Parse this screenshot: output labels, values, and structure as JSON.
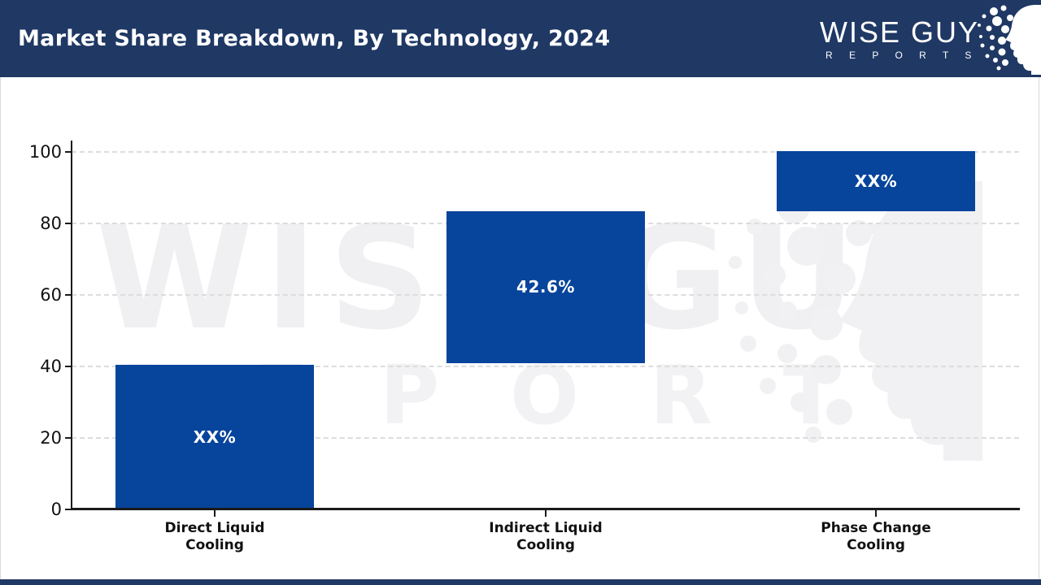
{
  "header": {
    "title": "Market Share Breakdown, By Technology, 2024",
    "logo": {
      "line1": "WISE GUY",
      "line2": "R E P O R T S"
    }
  },
  "watermark": {
    "line1": "WISE GUY",
    "line2": "R E P O R T S"
  },
  "colors": {
    "header_bg": "#1f3864",
    "bar": "#07449c",
    "grid": "#dcdcdc",
    "axis": "#1a1a1a",
    "watermark": "#f0f0f2",
    "card_border": "#d9d9d9",
    "bar_label_text": "#ffffff",
    "tick_text": "#111111"
  },
  "chart_data": {
    "type": "bar",
    "subtype": "waterfall",
    "title": "Market Share Breakdown, By Technology, 2024",
    "categories": [
      "Direct Liquid Cooling",
      "Indirect Liquid Cooling",
      "Phase Change Cooling"
    ],
    "category_label_lines": [
      [
        "Direct Liquid",
        "Cooling"
      ],
      [
        "Indirect Liquid",
        "Cooling"
      ],
      [
        "Phase Change",
        "Cooling"
      ]
    ],
    "segments": [
      {
        "category": "Direct Liquid Cooling",
        "start": 0,
        "end": 40.5,
        "label": "XX%"
      },
      {
        "category": "Indirect Liquid Cooling",
        "start": 40.9,
        "end": 83.5,
        "label": "42.6%",
        "value": 42.6
      },
      {
        "category": "Phase Change Cooling",
        "start": 83.5,
        "end": 100.2,
        "label": "XX%"
      }
    ],
    "xlabel": "",
    "ylabel": "",
    "yticks": [
      0,
      20,
      40,
      60,
      80,
      100
    ],
    "ylim": [
      0,
      103
    ],
    "grid": "horizontal dashed",
    "legend": "none"
  }
}
